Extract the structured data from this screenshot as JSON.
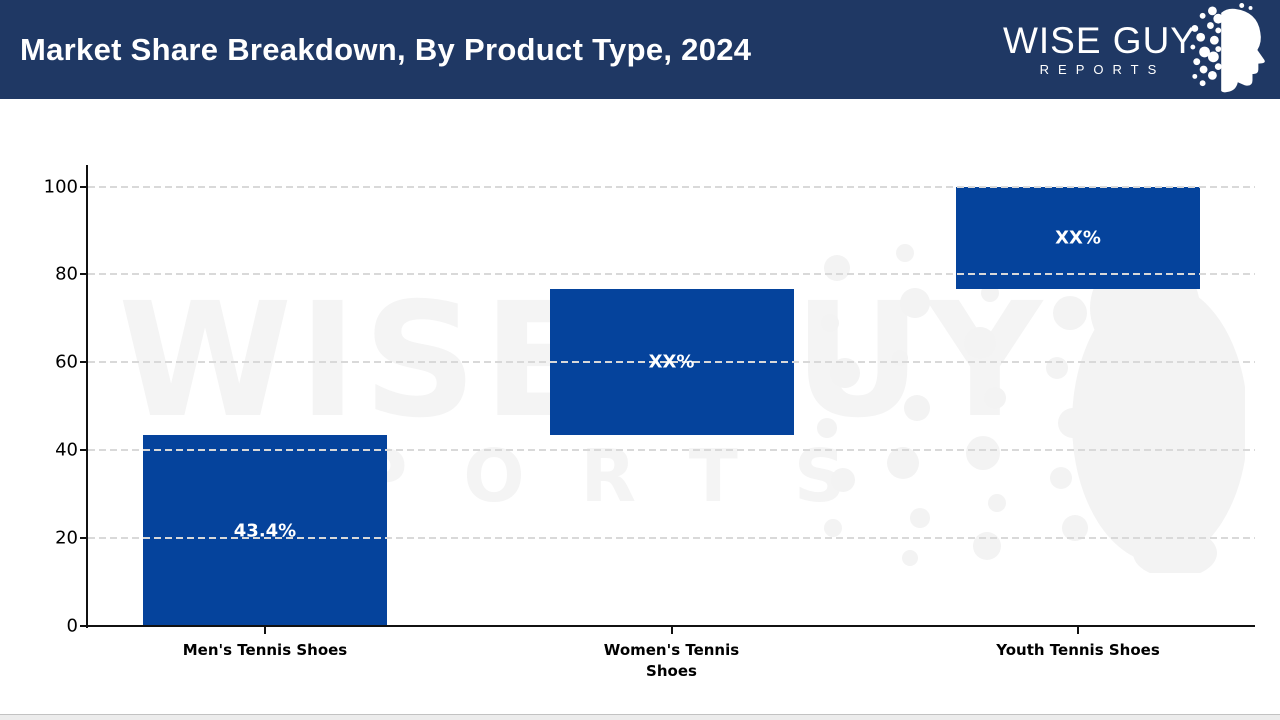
{
  "header": {
    "title": "Market Share Breakdown, By Product Type, 2024",
    "bg_color": "#1f3864",
    "logo": {
      "wordmark": "WISE GUY",
      "subtext": "REPORTS",
      "face_icon": "dotted-face-profile-icon"
    }
  },
  "watermark": {
    "wordmark": "WISE GUY",
    "subtext": "REPORTS",
    "face_icon": "dotted-face-profile-watermark"
  },
  "chart_data": {
    "type": "bar",
    "subtype": "floating-waterfall",
    "title": "Market Share Breakdown, By Product Type, 2024",
    "xlabel": "",
    "ylabel": "",
    "categories": [
      "Men's Tennis Shoes",
      "Women's Tennis\nShoes",
      "Youth Tennis Shoes"
    ],
    "bars": [
      {
        "category": "Men's Tennis Shoes",
        "start": 0,
        "end": 43.4,
        "label": "43.4%"
      },
      {
        "category": "Women's Tennis Shoes",
        "start": 43.4,
        "end": 76.7,
        "label": "XX%"
      },
      {
        "category": "Youth Tennis Shoes",
        "start": 76.7,
        "end": 100,
        "label": "XX%"
      }
    ],
    "yticks": [
      0,
      20,
      40,
      60,
      80,
      100
    ],
    "ylim": [
      0,
      105
    ],
    "grid": true,
    "grid_style": "dashed",
    "grid_color": "#d9d9d9",
    "grid_above_bars": true,
    "bar_color": "#05439c",
    "bar_label_color": "#ffffff",
    "axis_color": "#111111",
    "legend": "none"
  }
}
